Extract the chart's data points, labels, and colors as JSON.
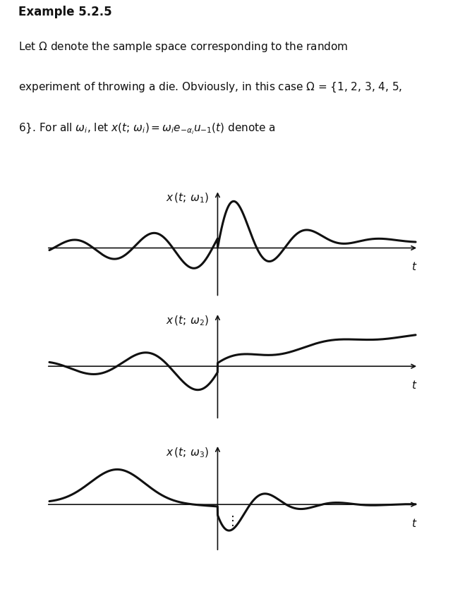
{
  "title": "Example 5.2.5",
  "background": "#ffffff",
  "curve_color": "#111111",
  "axis_color": "#111111",
  "linewidth": 2.2,
  "text_color": "#111111",
  "xlabel": "t"
}
